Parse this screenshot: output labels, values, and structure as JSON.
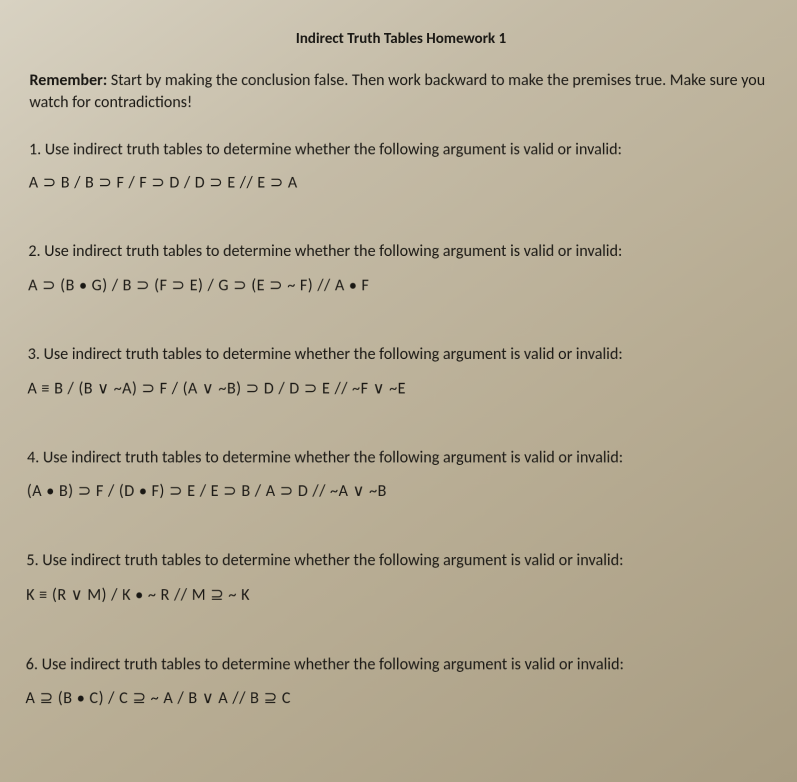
{
  "document": {
    "title": "Indirect Truth Tables Homework 1",
    "instructions": {
      "label": "Remember:",
      "text": "Start by making the conclusion false. Then work backward to make the premises true. Make sure you watch for contradictions!"
    },
    "problems": [
      {
        "number": "1.",
        "prompt": "Use indirect truth tables to determine whether the following argument is valid or invalid:",
        "formula": "A ⊃ B / B ⊃ F / F ⊃ D / D ⊃ E // E ⊃ A"
      },
      {
        "number": "2.",
        "prompt": "Use indirect truth tables to determine whether the following argument is valid or invalid:",
        "formula": "A ⊃ (B • G) / B ⊃ (F ⊃ E) / G ⊃ (E ⊃ ~ F) // A • F"
      },
      {
        "number": "3.",
        "prompt": "Use indirect truth tables to determine whether the following argument is valid or invalid:",
        "formula": "A ≡ B / (B ∨ ~A) ⊃ F / (A ∨ ~B) ⊃ D / D ⊃ E // ~F ∨ ~E"
      },
      {
        "number": "4.",
        "prompt": "Use indirect truth tables to determine whether the following argument is valid or invalid:",
        "formula": "(A • B) ⊃ F / (D • F) ⊃ E / E ⊃ B / A ⊃ D // ~A ∨ ~B"
      },
      {
        "number": "5.",
        "prompt": "Use indirect truth tables to determine whether the following argument is valid or invalid:",
        "formula": "K ≡ (R ∨ M) / K • ~ R // M ⊇ ~ K"
      },
      {
        "number": "6.",
        "prompt": "Use indirect truth tables to determine whether the following argument is valid or invalid:",
        "formula": "A ⊇ (B • C) / C ⊇ ~ A / B ∨ A // B ⊇ C"
      }
    ],
    "style": {
      "background_gradient": [
        "#d8d2c2",
        "#c4bba6",
        "#b8ad94",
        "#a89c82"
      ],
      "text_color": "#1a1814",
      "title_fontsize": 15,
      "body_fontsize": 16,
      "formula_fontsize": 16,
      "font_family": "Calibri",
      "problem_spacing": 48
    }
  }
}
